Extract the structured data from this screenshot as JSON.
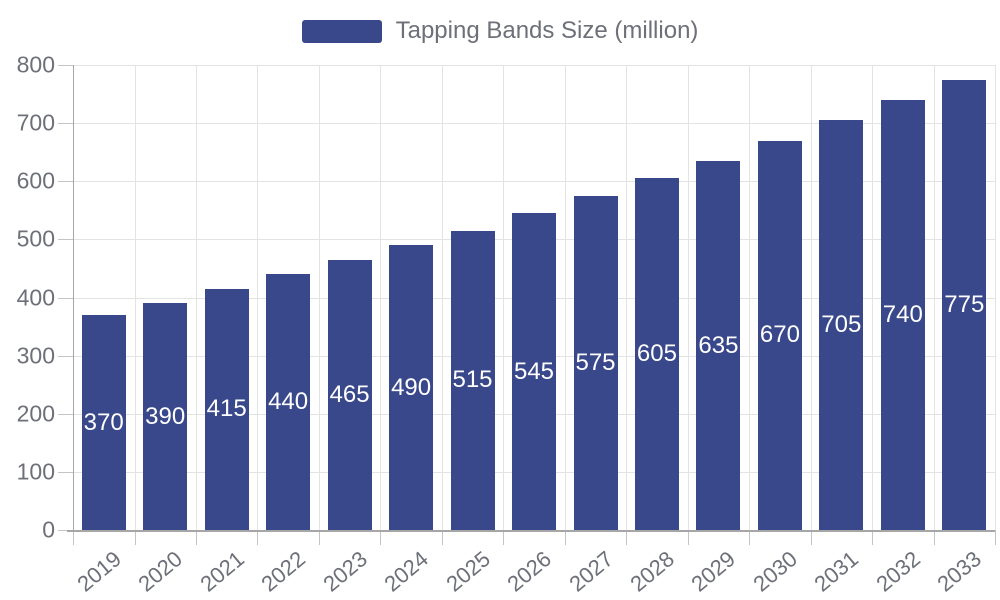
{
  "legend": {
    "label": "Tapping Bands Size (million)"
  },
  "chart_data": {
    "type": "bar",
    "title": "",
    "legend_entries": [
      "Tapping Bands Size (million)"
    ],
    "legend_position": "top-center",
    "categories": [
      "2019",
      "2020",
      "2021",
      "2022",
      "2023",
      "2024",
      "2025",
      "2026",
      "2027",
      "2028",
      "2029",
      "2030",
      "2031",
      "2032",
      "2033"
    ],
    "series": [
      {
        "name": "Tapping Bands Size (million)",
        "values": [
          370,
          390,
          415,
          440,
          465,
          490,
          515,
          545,
          575,
          605,
          635,
          670,
          705,
          740,
          775
        ]
      }
    ],
    "xlabel": "",
    "ylabel": "",
    "ylim": [
      0,
      800
    ],
    "yticks": [
      0,
      100,
      200,
      300,
      400,
      500,
      600,
      700,
      800
    ],
    "grid": true,
    "x_label_rotation_deg": -40,
    "bar_value_labels": "inside-center",
    "colors": {
      "bar": "#39488A",
      "bar_label": "#FFFFFF",
      "axis_text": "#6E7079",
      "axis_line": "#A6A6A6",
      "tick_line": "#C4C4C4",
      "grid_line": "#E3E3E3",
      "background": "#FFFFFF"
    }
  }
}
